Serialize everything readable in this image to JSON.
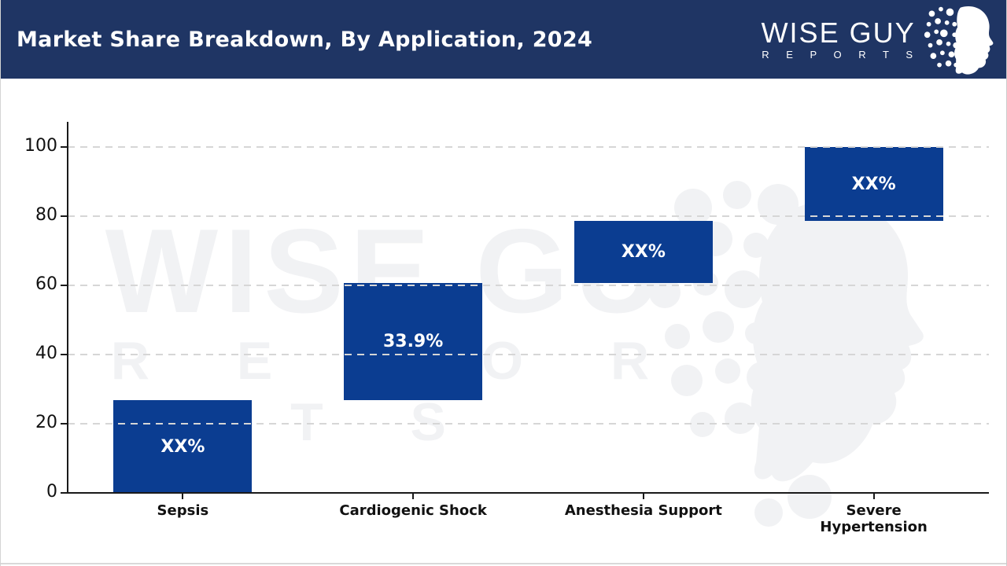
{
  "header": {
    "title": "Market Share Breakdown, By Application, 2024",
    "bg_color": "#1f3564",
    "logo": {
      "line1": "WISE GUY",
      "line2": "R E P O R T S"
    }
  },
  "watermark": {
    "line1": "WISE GU",
    "line2": "R E P O R T S"
  },
  "chart_data": {
    "type": "bar",
    "subtype": "waterfall-floating-bars",
    "title": "Market Share Breakdown, By Application, 2024",
    "categories": [
      "Sepsis",
      "Cardiogenic Shock",
      "Anesthesia Support",
      "Severe Hypertension"
    ],
    "categories_display": [
      [
        "Sepsis"
      ],
      [
        "Cardiogenic Shock"
      ],
      [
        "Anesthesia Support"
      ],
      [
        "Severe",
        "Hypertension"
      ]
    ],
    "segments": [
      {
        "category": "Sepsis",
        "start": 0,
        "end": 26.8,
        "label": "XX%"
      },
      {
        "category": "Cardiogenic Shock",
        "start": 26.8,
        "end": 60.7,
        "label": "33.9%"
      },
      {
        "category": "Anesthesia Support",
        "start": 60.7,
        "end": 78.6,
        "label": "XX%"
      },
      {
        "category": "Severe Hypertension",
        "start": 78.6,
        "end": 100,
        "label": "XX%"
      }
    ],
    "yticks": [
      0,
      20,
      40,
      60,
      80,
      100
    ],
    "ylim": [
      0,
      107
    ],
    "xlabel": "",
    "ylabel": "",
    "bar_color": "#0b3d91",
    "grid": "horizontal-dashed",
    "grid_color": "#d6d6d6",
    "legend": "none"
  }
}
